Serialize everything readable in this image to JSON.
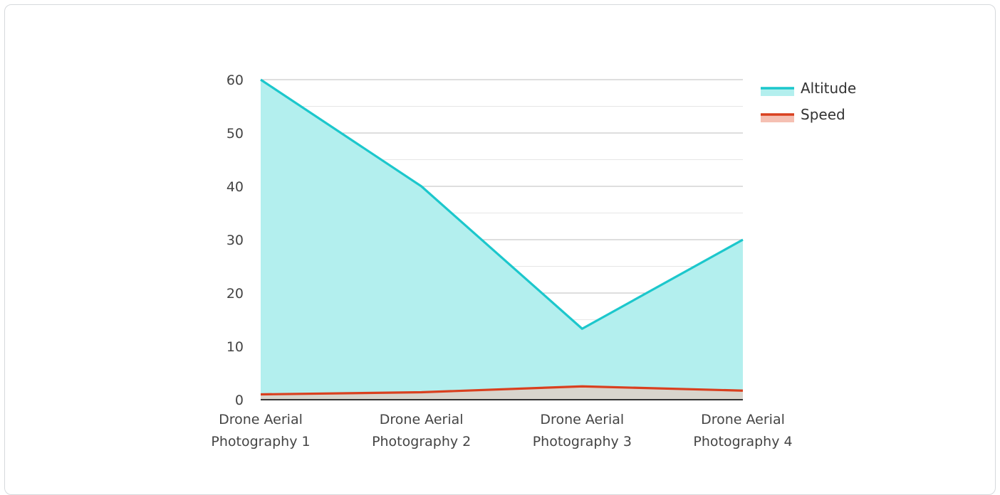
{
  "chart_data": {
    "type": "area",
    "categories": [
      "Drone Aerial Photography 1",
      "Drone Aerial Photography 2",
      "Drone Aerial Photography 3",
      "Drone Aerial Photography 4"
    ],
    "category_lines": [
      [
        "Drone Aerial",
        "Photography 1"
      ],
      [
        "Drone Aerial",
        "Photography 2"
      ],
      [
        "Drone Aerial",
        "Photography 3"
      ],
      [
        "Drone Aerial",
        "Photography 4"
      ]
    ],
    "series": [
      {
        "name": "Altitude",
        "values": [
          60,
          40,
          13.3,
          30
        ],
        "line_color": "#1cc7cc",
        "fill_color": "#b3efee"
      },
      {
        "name": "Speed",
        "values": [
          1.0,
          1.4,
          2.5,
          1.7
        ],
        "line_color": "#d9401f",
        "fill_color": "#f5c0b3"
      }
    ],
    "ylim": [
      0,
      60
    ],
    "y_ticks": [
      0,
      10,
      20,
      30,
      40,
      50,
      60
    ],
    "grid": true,
    "legend": "top-right",
    "title": "",
    "xlabel": "",
    "ylabel": ""
  }
}
